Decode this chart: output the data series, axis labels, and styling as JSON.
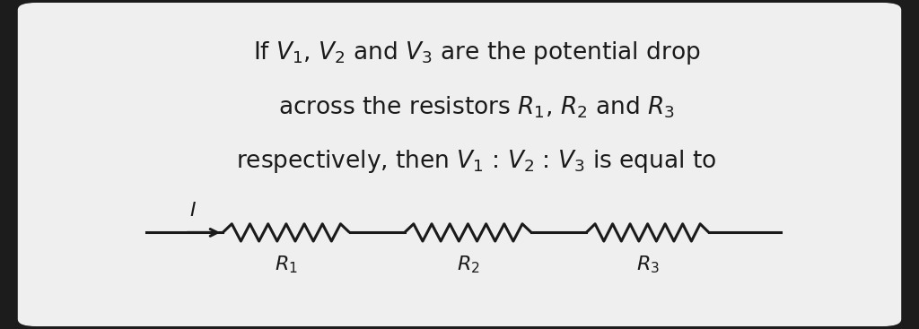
{
  "bg_color": "#1c1c1c",
  "panel_color": "#efefef",
  "text_color": "#1a1a1a",
  "line1": "If $V_1$, $V_2$ and $V_3$ are the potential drop",
  "line2": "across the resistors $R_1$, $R_2$ and $R_3$",
  "line3": "respectively, then $V_1$ : $V_2$ : $V_3$ is equal to",
  "text_fontsize": 19,
  "resistor_labels": [
    "$R_1$",
    "$R_2$",
    "$R_3$"
  ],
  "wire_color": "#1a1a1a",
  "label_fontsize": 16,
  "current_label": "$I$"
}
